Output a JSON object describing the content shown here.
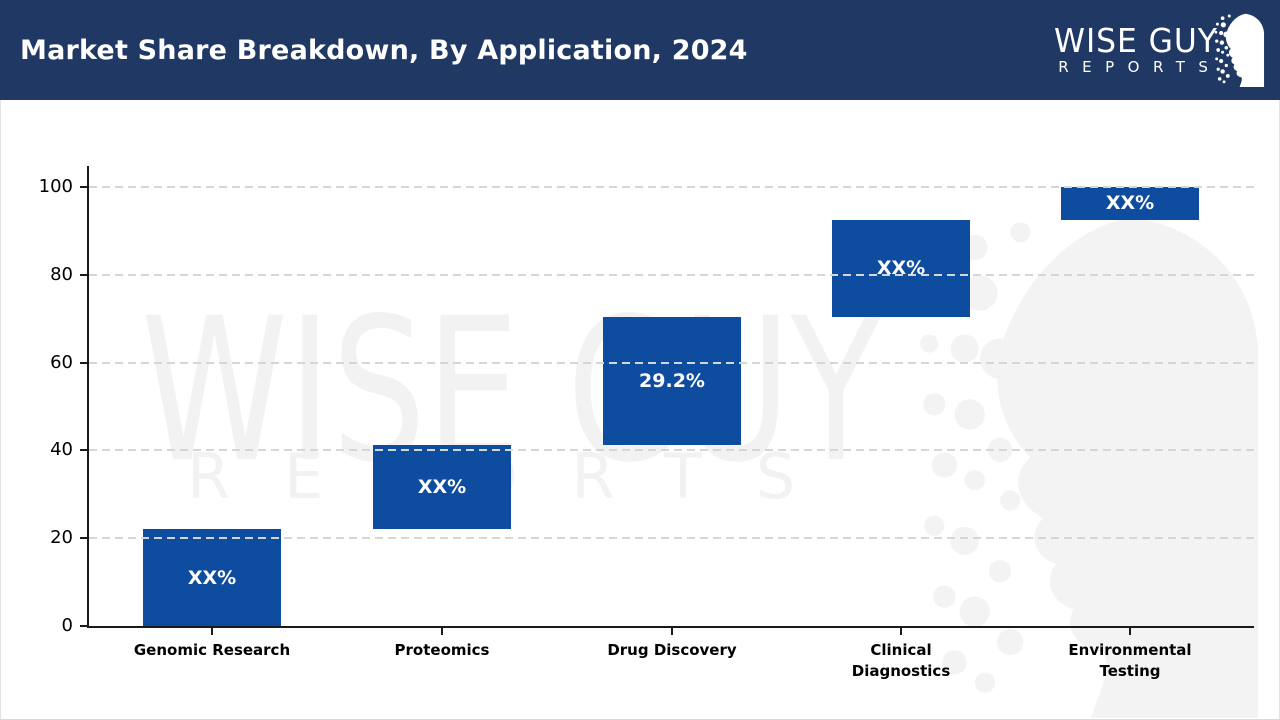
{
  "header": {
    "title": "Market Share Breakdown, By Application, 2024",
    "brand": {
      "line1": "WISE GUY",
      "line2": "REPORTS"
    }
  },
  "watermark": {
    "line1": "WISE GUY",
    "line2": "REPORTS"
  },
  "colors": {
    "header_bg": "#1f3864",
    "bar": "#0d4c9f",
    "grid": "#d6d6d6",
    "axis": "#1a1a1a",
    "watermark": "#f2f2f2",
    "title_text": "#ffffff",
    "bar_label_text": "#ffffff",
    "tick_text": "#000000"
  },
  "chart_data": {
    "type": "bar",
    "subtype": "waterfall",
    "title": "Market Share Breakdown, By Application, 2024",
    "xlabel": "",
    "ylabel": "",
    "categories": [
      "Genomic Research",
      "Proteomics",
      "Drug Discovery",
      "Clinical Diagnostics",
      "Environmental Testing"
    ],
    "x_display": [
      "Genomic Research",
      "Proteomics",
      "Drug Discovery",
      "Clinical\nDiagnostics",
      "Environmental\nTesting"
    ],
    "segments": [
      {
        "start": 0,
        "end": 22
      },
      {
        "start": 22,
        "end": 41.3
      },
      {
        "start": 41.3,
        "end": 70.5
      },
      {
        "start": 70.5,
        "end": 92.5
      },
      {
        "start": 92.5,
        "end": 100
      }
    ],
    "values": [
      22,
      19.3,
      29.2,
      22,
      7.5
    ],
    "bar_labels": [
      "XX%",
      "XX%",
      "29.2%",
      "XX%",
      "XX%"
    ],
    "ylim": [
      0,
      100
    ],
    "yticks": [
      0,
      20,
      40,
      60,
      80,
      100
    ],
    "grid": "horizontal dashed, drawn above bars",
    "legend": "none"
  }
}
